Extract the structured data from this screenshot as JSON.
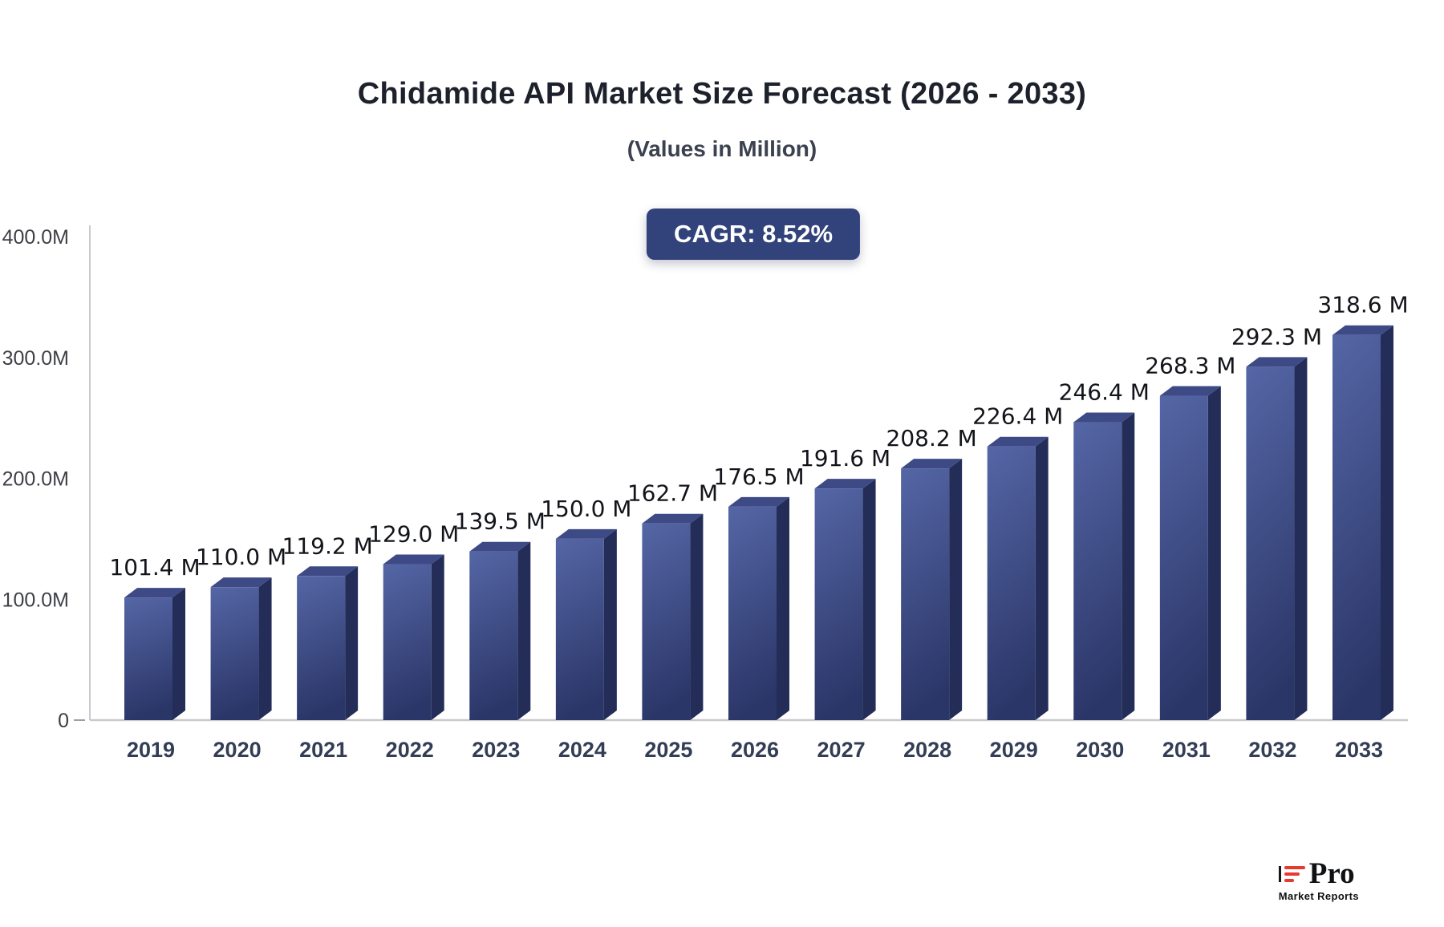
{
  "header": {
    "title": "Chidamide API Market Size Forecast (2026 - 2033)",
    "subtitle": "(Values in Million)"
  },
  "badge": {
    "label": "CAGR: 8.52%",
    "bg": "#32427b",
    "text_color": "#ffffff"
  },
  "chart_data": {
    "type": "bar",
    "title": "Chidamide API Market Size Forecast (2026 - 2033)",
    "subtitle": "(Values in Million)",
    "xlabel": "",
    "ylabel": "",
    "categories": [
      "2019",
      "2020",
      "2021",
      "2022",
      "2023",
      "2024",
      "2025",
      "2026",
      "2027",
      "2028",
      "2029",
      "2030",
      "2031",
      "2032",
      "2033"
    ],
    "values": [
      101.4,
      110.0,
      119.2,
      129.0,
      139.5,
      150.0,
      162.7,
      176.5,
      191.6,
      208.2,
      226.4,
      246.4,
      268.3,
      292.3,
      318.6
    ],
    "value_labels": [
      "101.4 M",
      "110.0 M",
      "119.2 M",
      "129.0 M",
      "139.5 M",
      "150.0 M",
      "162.7 M",
      "176.5 M",
      "191.6 M",
      "208.2 M",
      "226.4 M",
      "246.4 M",
      "268.3 M",
      "292.3 M",
      "318.6 M"
    ],
    "unit": "Million",
    "ylim": [
      0,
      400
    ],
    "y_ticks": [
      {
        "value": 400,
        "label": "400.0M"
      },
      {
        "value": 300,
        "label": "300.0M"
      },
      {
        "value": 200,
        "label": "200.0M"
      },
      {
        "value": 100,
        "label": "100.0M"
      },
      {
        "value": 0,
        "label": "0"
      }
    ],
    "grid": false,
    "legend": false,
    "bar_style": "3d-extruded",
    "bar_colors": {
      "front_top": "#5566a6",
      "front_bottom": "#2b3668",
      "side": "#232d58",
      "top": "#3e4a85"
    },
    "axis_color": "#c9cacf"
  },
  "logo": {
    "name": "Pro",
    "subtext": "Market Reports",
    "accent": "#e8392e"
  }
}
